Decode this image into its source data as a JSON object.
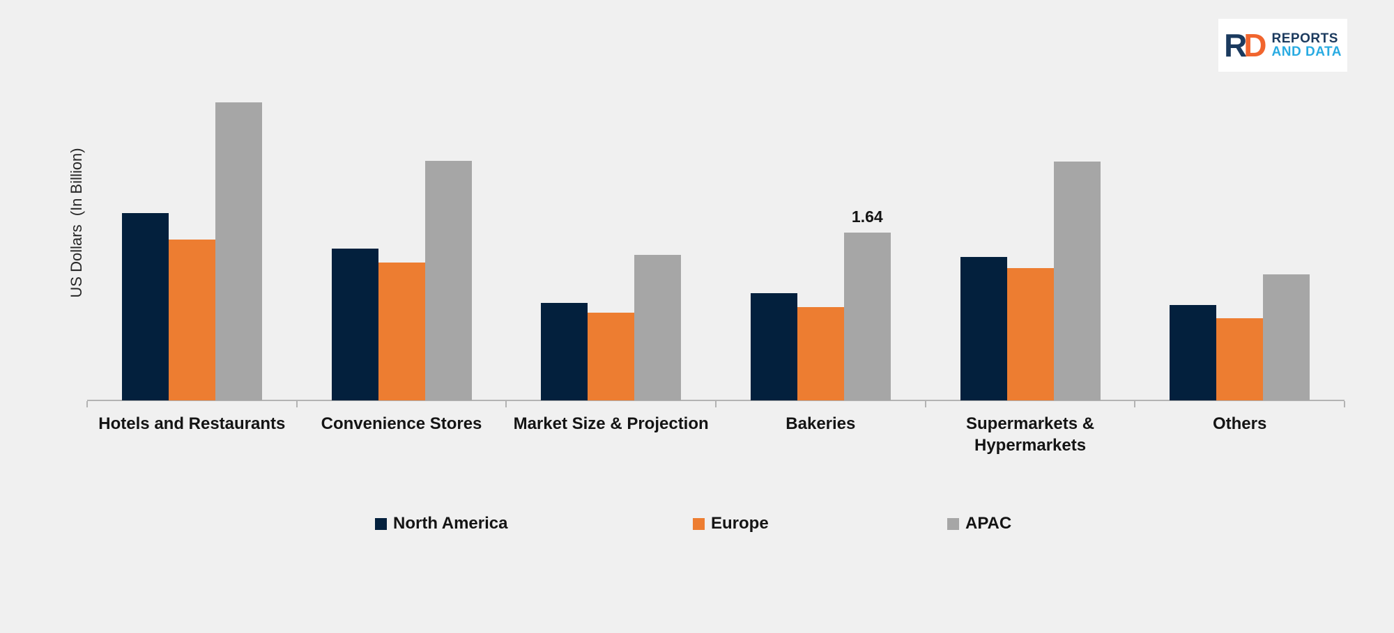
{
  "background_color": "#f0f0f0",
  "logo": {
    "monogram_r": "R",
    "monogram_d": "D",
    "line1": "REPORTS",
    "line2": "AND DATA",
    "navy_color": "#1b3a5e",
    "orange_color": "#f1652e",
    "blue_color": "#29abe2"
  },
  "chart_data": {
    "type": "bar",
    "title": "",
    "xlabel": "",
    "ylabel": "US Dollars  (In Billion)",
    "categories": [
      "Hotels and Restaurants",
      "Convenience Stores",
      "Market Size & Projection",
      "Bakeries",
      "Supermarkets & Hypermarkets",
      "Others"
    ],
    "series": [
      {
        "name": "North America",
        "color": "#03203d",
        "values": [
          1.83,
          1.48,
          0.95,
          1.05,
          1.4,
          0.93
        ]
      },
      {
        "name": "Europe",
        "color": "#ed7d31",
        "values": [
          1.57,
          1.35,
          0.86,
          0.91,
          1.29,
          0.8
        ]
      },
      {
        "name": "APAC",
        "color": "#a6a6a6",
        "values": [
          2.91,
          2.34,
          1.42,
          1.64,
          2.33,
          1.23
        ]
      }
    ],
    "annotations": [
      {
        "category": "Bakeries",
        "series": "APAC",
        "text": "1.64"
      }
    ],
    "ylim": [
      0,
      3.1
    ],
    "grid": false,
    "y_axis_tick_labels_visible": false,
    "legend_position": "bottom",
    "axis_color": "#b3b3b3"
  }
}
